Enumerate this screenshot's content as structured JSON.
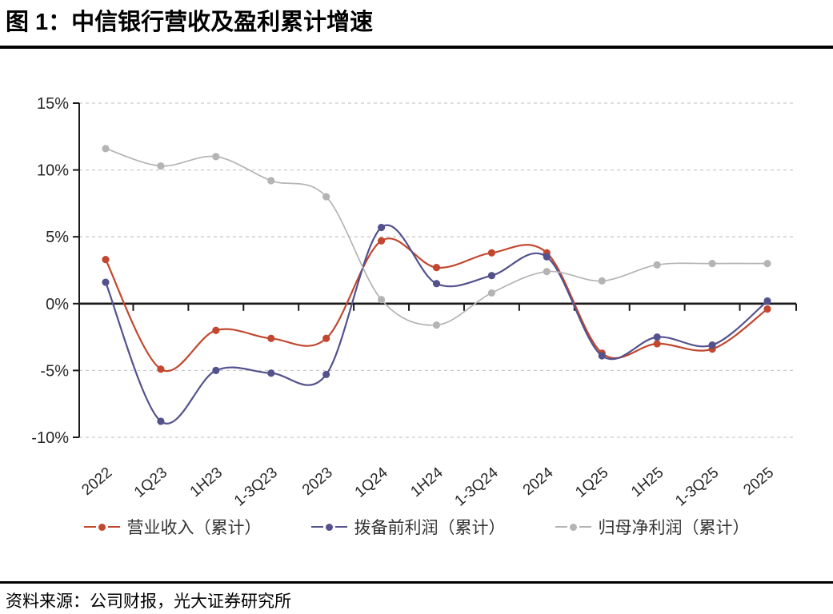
{
  "figure": {
    "title": "图 1：中信银行营收及盈利累计增速",
    "source": "资料来源：公司财报，光大证券研究所"
  },
  "chart_data": {
    "type": "line",
    "title": "中信银行营收及盈利累计增速",
    "line_style": "smooth",
    "marker": "circle",
    "grid": "horizontal-dashed",
    "legend_position": "bottom",
    "ylim": [
      -10,
      15
    ],
    "y_ticks": [
      {
        "label": "15%",
        "value": 15
      },
      {
        "label": "10%",
        "value": 10
      },
      {
        "label": "5%",
        "value": 5
      },
      {
        "label": "0%",
        "value": 0
      },
      {
        "label": "-5%",
        "value": -5
      },
      {
        "label": "-10%",
        "value": -10
      }
    ],
    "categories": [
      "2022",
      "1Q23",
      "1H23",
      "1-3Q23",
      "2023",
      "1Q24",
      "1H24",
      "1-3Q24",
      "2024",
      "1Q25",
      "1H25",
      "1-3Q25",
      "2025"
    ],
    "series": [
      {
        "name": "营业收入（累计）",
        "color": "#c2472f",
        "values": [
          3.3,
          -4.9,
          -2.0,
          -2.6,
          -2.6,
          4.7,
          2.7,
          3.8,
          3.8,
          -3.7,
          -3.0,
          -3.4,
          -0.4
        ]
      },
      {
        "name": "拨备前利润（累计）",
        "color": "#54528c",
        "values": [
          1.6,
          -8.8,
          -5.0,
          -5.2,
          -5.3,
          5.7,
          1.5,
          2.1,
          3.5,
          -3.9,
          -2.5,
          -3.1,
          0.2
        ]
      },
      {
        "name": "归母净利润（累计）",
        "color": "#b4b4b4",
        "values": [
          11.6,
          10.3,
          11.0,
          9.2,
          8.0,
          0.3,
          -1.6,
          0.8,
          2.4,
          1.7,
          2.9,
          3.0,
          3.0
        ]
      }
    ]
  }
}
